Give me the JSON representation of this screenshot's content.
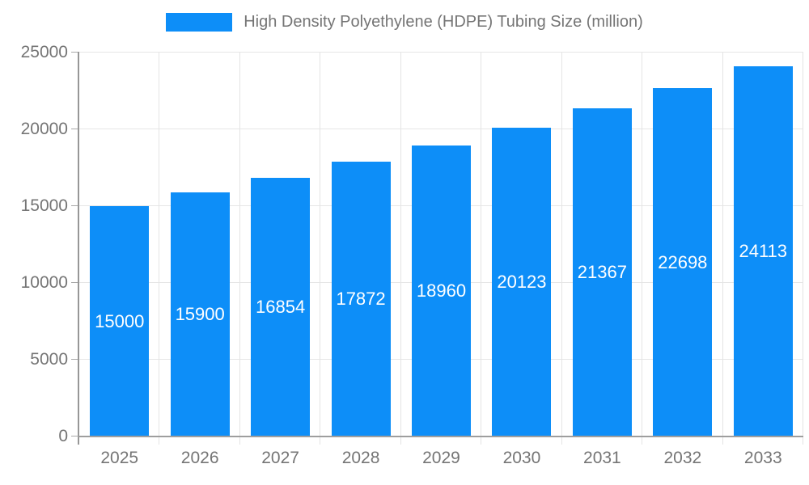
{
  "legend": {
    "label": "High Density Polyethylene (HDPE) Tubing Size (million)"
  },
  "chart_data": {
    "type": "bar",
    "title": "High Density Polyethylene (HDPE) Tubing Size (million)",
    "categories": [
      "2025",
      "2026",
      "2027",
      "2028",
      "2029",
      "2030",
      "2031",
      "2032",
      "2033"
    ],
    "series": [
      {
        "name": "High Density Polyethylene (HDPE) Tubing Size (million)",
        "values": [
          15000,
          15900,
          16854,
          17872,
          18960,
          20123,
          21367,
          22698,
          24113
        ]
      }
    ],
    "data_labels_visible": true,
    "xlabel": "",
    "ylabel": "",
    "ylim": [
      0,
      25000
    ],
    "y_ticks": [
      0,
      5000,
      10000,
      15000,
      20000,
      25000
    ],
    "grid": true,
    "legend_position": "top"
  },
  "colors": {
    "bar": "#0d8ef8",
    "axis": "#9e9e9e",
    "grid": "#e6e6e6",
    "tick_text": "#757575",
    "value_label": "#ffffff",
    "background": "#ffffff"
  }
}
